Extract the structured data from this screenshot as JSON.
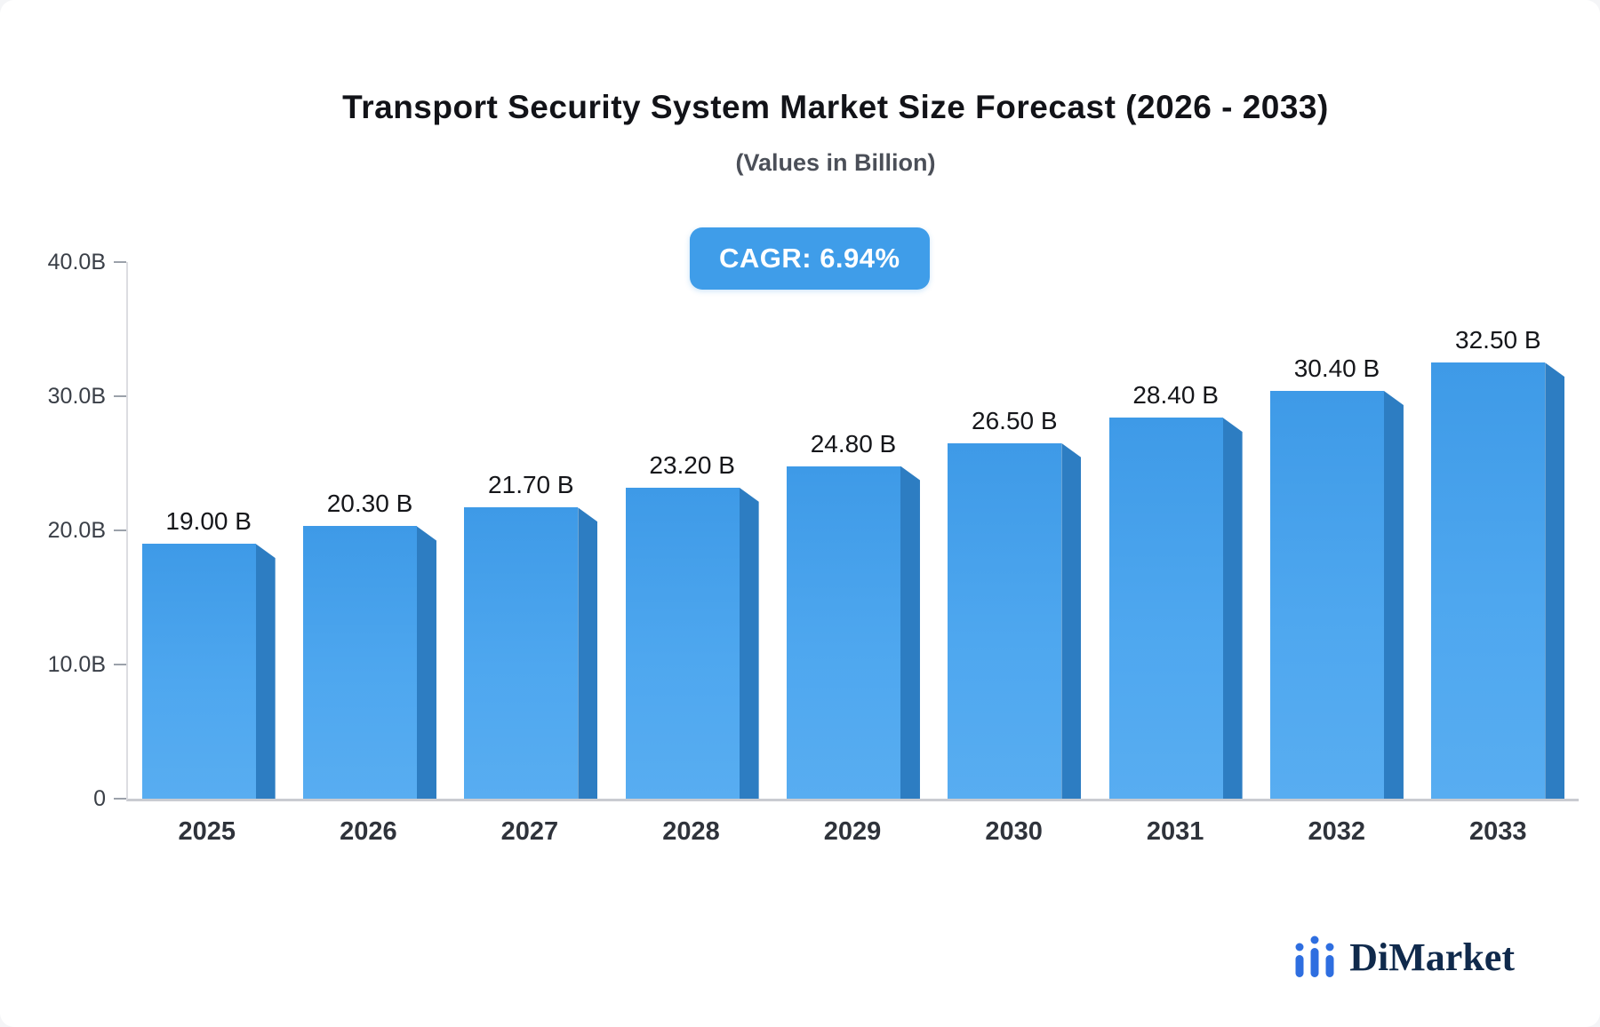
{
  "chart": {
    "title": "Transport Security System Market Size Forecast (2026 - 2033)",
    "subtitle": "(Values in Billion)",
    "cagr_label": "CAGR: 6.94%"
  },
  "chart_data": {
    "type": "bar",
    "title": "Transport Security System Market Size Forecast (2026 - 2033)",
    "subtitle": "(Values in Billion)",
    "categories": [
      "2025",
      "2026",
      "2027",
      "2028",
      "2029",
      "2030",
      "2031",
      "2032",
      "2033"
    ],
    "values": [
      19.0,
      20.3,
      21.7,
      23.2,
      24.8,
      26.5,
      28.4,
      30.4,
      32.5
    ],
    "value_labels": [
      "19.00 B",
      "20.30 B",
      "21.70 B",
      "23.20 B",
      "24.80 B",
      "26.50 B",
      "28.40 B",
      "30.40 B",
      "32.50 B"
    ],
    "xlabel": "",
    "ylabel": "",
    "ylim": [
      0,
      40
    ],
    "yticks": [
      {
        "value": 40,
        "label": "40.0B"
      },
      {
        "value": 30,
        "label": "30.0B"
      },
      {
        "value": 20,
        "label": "20.0B"
      },
      {
        "value": 10,
        "label": "10.0B"
      },
      {
        "value": 0,
        "label": "0"
      }
    ],
    "grid": false,
    "legend": "none",
    "cagr": "6.94%",
    "bar_color": "#469fe9",
    "bar_side_color": "#2d7dc2"
  },
  "logo": {
    "text": "DiMarket"
  }
}
